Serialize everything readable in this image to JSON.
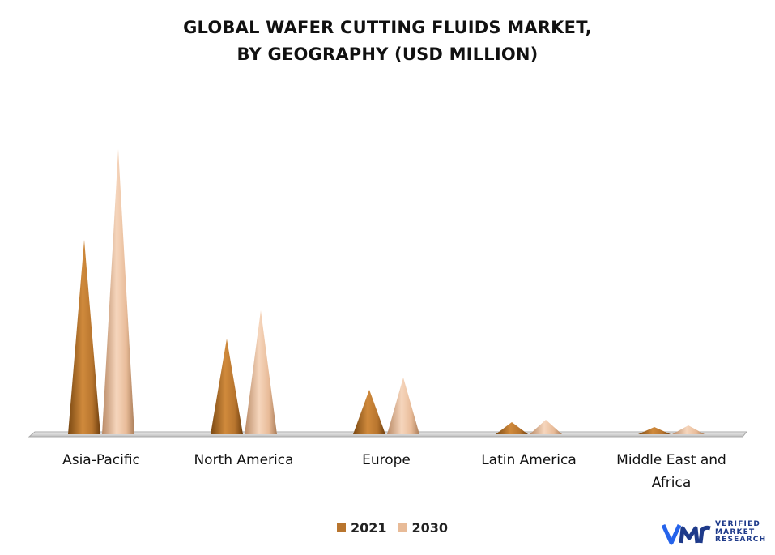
{
  "chart_data": {
    "type": "bar",
    "title": "GLOBAL WAFER CUTTING FLUIDS MARKET,",
    "subtitle": "BY GEOGRAPHY (USD MILLION)",
    "categories": [
      "Asia-Pacific",
      "North America",
      "Europe",
      "Latin America",
      "Middle East and Africa"
    ],
    "category_lines": [
      [
        "Asia-Pacific"
      ],
      [
        "North America"
      ],
      [
        "Europe"
      ],
      [
        "Latin America"
      ],
      [
        "Middle East and",
        "Africa"
      ]
    ],
    "series": [
      {
        "name": "2021",
        "values": [
          240,
          118,
          55,
          15,
          9
        ],
        "color": "#b8752e"
      },
      {
        "name": "2030",
        "values": [
          352,
          153,
          70,
          18,
          11
        ],
        "color": "#e8bb98"
      }
    ],
    "ylim": [
      0,
      360
    ],
    "grid": false,
    "legend_position": "bottom"
  },
  "legend": {
    "items": [
      "2021",
      "2030"
    ]
  },
  "logo": {
    "line1": "VERIFIED",
    "line2": "MARKET",
    "line3": "RESEARCH"
  }
}
